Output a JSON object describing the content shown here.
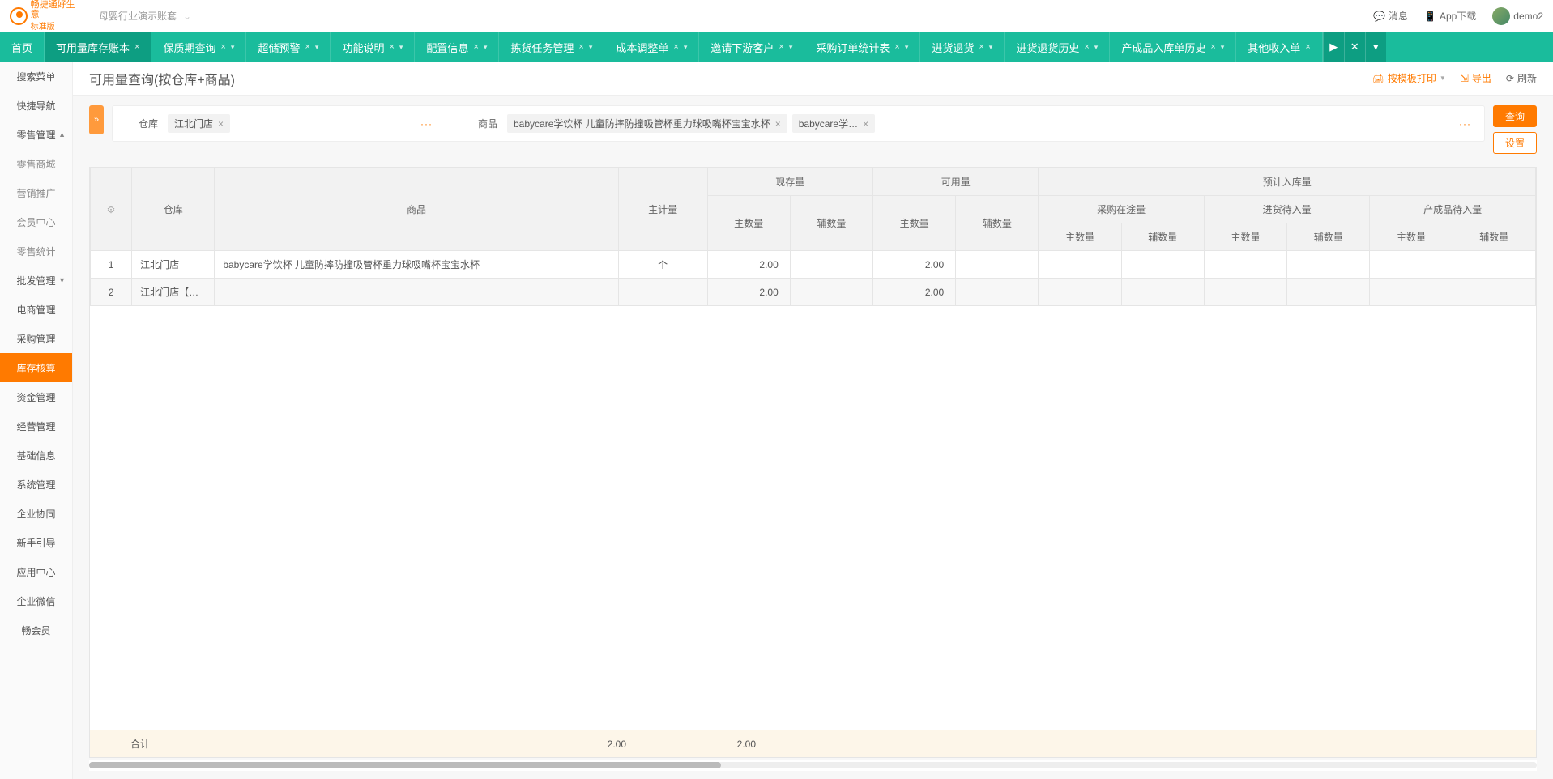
{
  "brand": {
    "line1": "畅捷通好生意",
    "line2": "标准版"
  },
  "org": "母婴行业演示账套",
  "topright": {
    "msg": "消息",
    "app": "App下载",
    "user": "demo2"
  },
  "tabs": [
    {
      "label": "首页",
      "close": false,
      "dd": false,
      "active": false
    },
    {
      "label": "可用量库存账本",
      "close": true,
      "dd": false,
      "active": true
    },
    {
      "label": "保质期查询",
      "close": true,
      "dd": true,
      "active": false
    },
    {
      "label": "超储预警",
      "close": true,
      "dd": true,
      "active": false
    },
    {
      "label": "功能说明",
      "close": true,
      "dd": true,
      "active": false
    },
    {
      "label": "配置信息",
      "close": true,
      "dd": true,
      "active": false
    },
    {
      "label": "拣货任务管理",
      "close": true,
      "dd": true,
      "active": false
    },
    {
      "label": "成本调整单",
      "close": true,
      "dd": true,
      "active": false
    },
    {
      "label": "邀请下游客户",
      "close": true,
      "dd": true,
      "active": false
    },
    {
      "label": "采购订单统计表",
      "close": true,
      "dd": true,
      "active": false
    },
    {
      "label": "进货退货",
      "close": true,
      "dd": true,
      "active": false
    },
    {
      "label": "进货退货历史",
      "close": true,
      "dd": true,
      "active": false
    },
    {
      "label": "产成品入库单历史",
      "close": true,
      "dd": true,
      "active": false
    },
    {
      "label": "其他收入单",
      "close": true,
      "dd": false,
      "active": false
    }
  ],
  "sidebar": [
    {
      "label": "搜索菜单",
      "sub": false
    },
    {
      "label": "快捷导航",
      "sub": false
    },
    {
      "label": "零售管理",
      "sub": false,
      "caret": "▲"
    },
    {
      "label": "零售商城",
      "sub": true
    },
    {
      "label": "营销推广",
      "sub": true
    },
    {
      "label": "会员中心",
      "sub": true
    },
    {
      "label": "零售统计",
      "sub": true
    },
    {
      "label": "批发管理",
      "sub": false,
      "caret": "▼"
    },
    {
      "label": "电商管理",
      "sub": false
    },
    {
      "label": "采购管理",
      "sub": false
    },
    {
      "label": "库存核算",
      "sub": false,
      "active": true
    },
    {
      "label": "资金管理",
      "sub": false
    },
    {
      "label": "经营管理",
      "sub": false
    },
    {
      "label": "基础信息",
      "sub": false
    },
    {
      "label": "系统管理",
      "sub": false
    },
    {
      "label": "企业协同",
      "sub": false
    },
    {
      "label": "新手引导",
      "sub": false
    },
    {
      "label": "应用中心",
      "sub": false
    },
    {
      "label": "企业微信",
      "sub": false
    },
    {
      "label": "畅会员",
      "sub": false
    }
  ],
  "page": {
    "title": "可用量查询(按仓库+商品)",
    "actions": {
      "print": "按模板打印",
      "export": "导出",
      "refresh": "刷新"
    }
  },
  "filter": {
    "warehouse": {
      "label": "仓库",
      "tags": [
        "江北门店"
      ]
    },
    "product": {
      "label": "商品",
      "tags": [
        "babycare学饮杯 儿童防摔防撞吸管杯重力球吸嘴杯宝宝水杯",
        "babycare学…"
      ]
    },
    "more": "···",
    "btns": {
      "query": "查询",
      "set": "设置"
    }
  },
  "table": {
    "head": {
      "gear": "⚙",
      "warehouse": "仓库",
      "product": "商品",
      "mainUnit": "主计量",
      "stock": "现存量",
      "avail": "可用量",
      "expect": "预计入库量",
      "purchase": "采购在途量",
      "incoming": "进货待入量",
      "finished": "产成品待入量",
      "mainQty": "主数量",
      "auxQty": "辅数量"
    },
    "rows": [
      {
        "idx": "1",
        "wh": "江北门店",
        "prod": "babycare学饮杯 儿童防摔防撞吸管杯重力球吸嘴杯宝宝水杯",
        "unit": "个",
        "stockMain": "2.00",
        "stockAux": "",
        "availMain": "2.00",
        "availAux": ""
      },
      {
        "idx": "2",
        "wh": "江北门店【…",
        "prod": "",
        "unit": "",
        "stockMain": "2.00",
        "stockAux": "",
        "availMain": "2.00",
        "availAux": "",
        "sum": true
      }
    ],
    "footer": {
      "label": "合计",
      "stockMain": "2.00",
      "availMain": "2.00"
    },
    "colWidths": {
      "idx": 40,
      "wh": 80,
      "prod": 390,
      "unit": 86,
      "sub": 80
    },
    "scroll": {
      "thumbLeft": 0,
      "thumbWidth": 780
    }
  },
  "colors": {
    "accent": "#ff7a00",
    "green": "#1abc9c",
    "greenDark": "#0d9e82",
    "footer": "#fdf6e9"
  }
}
